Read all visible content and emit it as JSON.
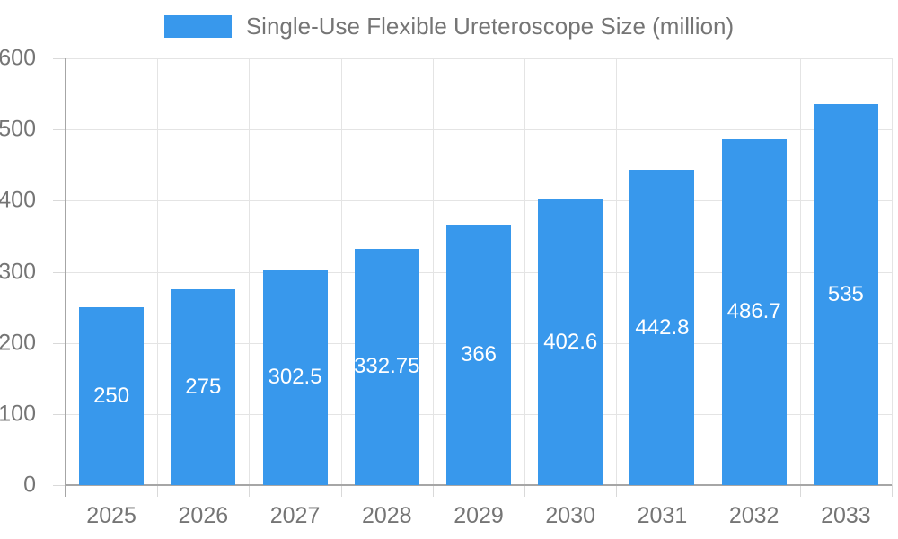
{
  "chart_data": {
    "type": "bar",
    "title": "Single-Use Flexible Ureteroscope Size (million)",
    "legend": {
      "position": "top",
      "label": "Single-Use Flexible Ureteroscope Size (million)"
    },
    "categories": [
      "2025",
      "2026",
      "2027",
      "2028",
      "2029",
      "2030",
      "2031",
      "2032",
      "2033"
    ],
    "series": [
      {
        "name": "Single-Use Flexible Ureteroscope Size (million)",
        "values": [
          250,
          275,
          302.5,
          332.75,
          366,
          402.6,
          442.8,
          486.7,
          535
        ],
        "value_labels": [
          "250",
          "275",
          "302.5",
          "332.75",
          "366",
          "402.6",
          "442.8",
          "486.7",
          "535"
        ]
      }
    ],
    "xlabel": "",
    "ylabel": "",
    "ylim": [
      0,
      600
    ],
    "yticks": [
      0,
      100,
      200,
      300,
      400,
      500,
      600
    ],
    "grid": "on",
    "colors": {
      "bar": "#3898ec",
      "bar_value_text": "#ffffff",
      "axis_text": "#757575",
      "grid_line": "#e4e4e4",
      "axis_line": "#a6a6a6",
      "baseline": "#a6a6a6",
      "tick_line": "#d9d9d9",
      "background": "#ffffff"
    }
  }
}
